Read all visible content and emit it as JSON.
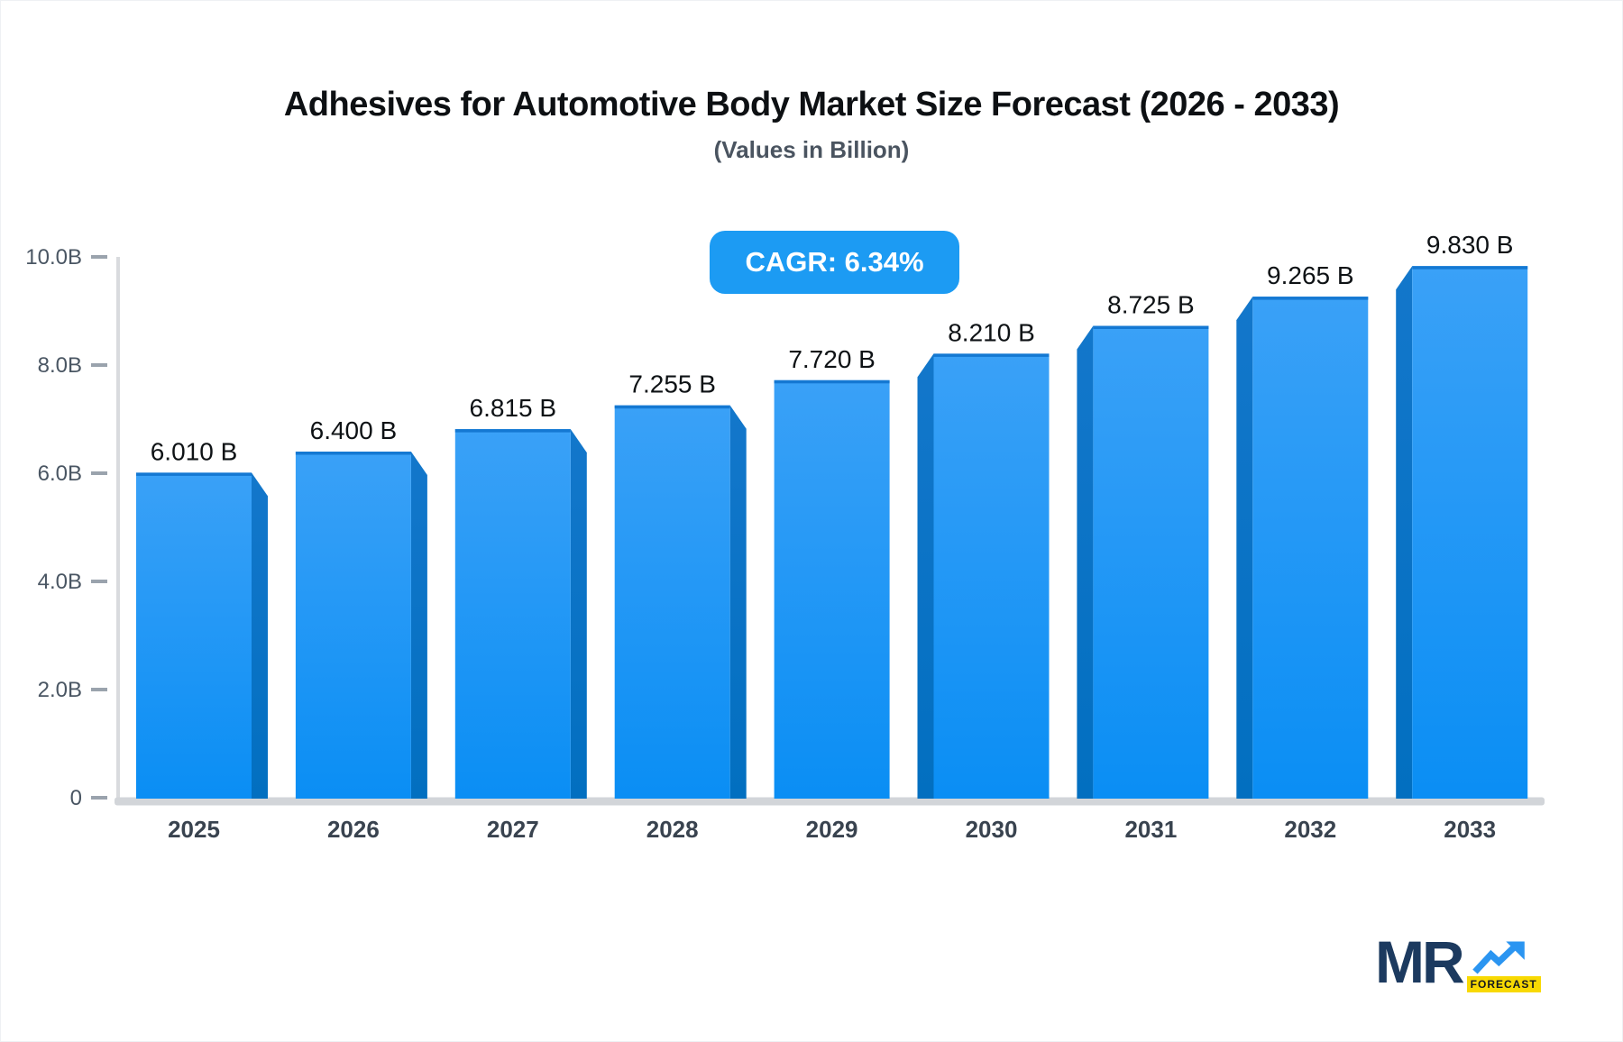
{
  "chart_data": {
    "type": "bar",
    "title": "Adhesives for Automotive Body Market Size Forecast (2026 - 2033)",
    "subtitle": "(Values in Billion)",
    "cagr_label": "CAGR: 6.34%",
    "categories": [
      "2025",
      "2026",
      "2027",
      "2028",
      "2029",
      "2030",
      "2031",
      "2032",
      "2033"
    ],
    "values": [
      6.01,
      6.4,
      6.815,
      7.255,
      7.72,
      8.21,
      8.725,
      9.265,
      9.83
    ],
    "value_labels": [
      "6.010 B",
      "6.400 B",
      "6.815 B",
      "7.255 B",
      "7.720 B",
      "8.210 B",
      "8.725 B",
      "9.265 B",
      "9.830 B"
    ],
    "xlabel": "",
    "ylabel": "",
    "ylim": [
      0,
      10
    ],
    "grid": false,
    "legend": null,
    "yticks": {
      "values": [
        0,
        2,
        4,
        6,
        8,
        10
      ],
      "labels": [
        "0",
        "2.0B",
        "4.0B",
        "6.0B",
        "8.0B",
        "10.0B"
      ]
    }
  },
  "colors": {
    "bar_face_top": "#3aa1f7",
    "bar_face_bottom": "#0a8ef4",
    "bar_side_top": "#1377cb",
    "bar_side_bottom": "#026fc0",
    "bar_top_edge": "#1478d2",
    "badge_blue": "#1c9bf3",
    "axis_line": "#d9dbde",
    "baseline": "#d2d5d9",
    "tick": "#9aa3ad",
    "ytick_text": "#4a5663",
    "xtick_text": "#39434f",
    "value_text": "#0e1215",
    "logo_navy": "#1c3a5f",
    "logo_yellow": "#f8d903",
    "logo_arrow_blue": "#2b95f1"
  },
  "logo": {
    "brand": "MR",
    "tagline": "FORECAST"
  }
}
